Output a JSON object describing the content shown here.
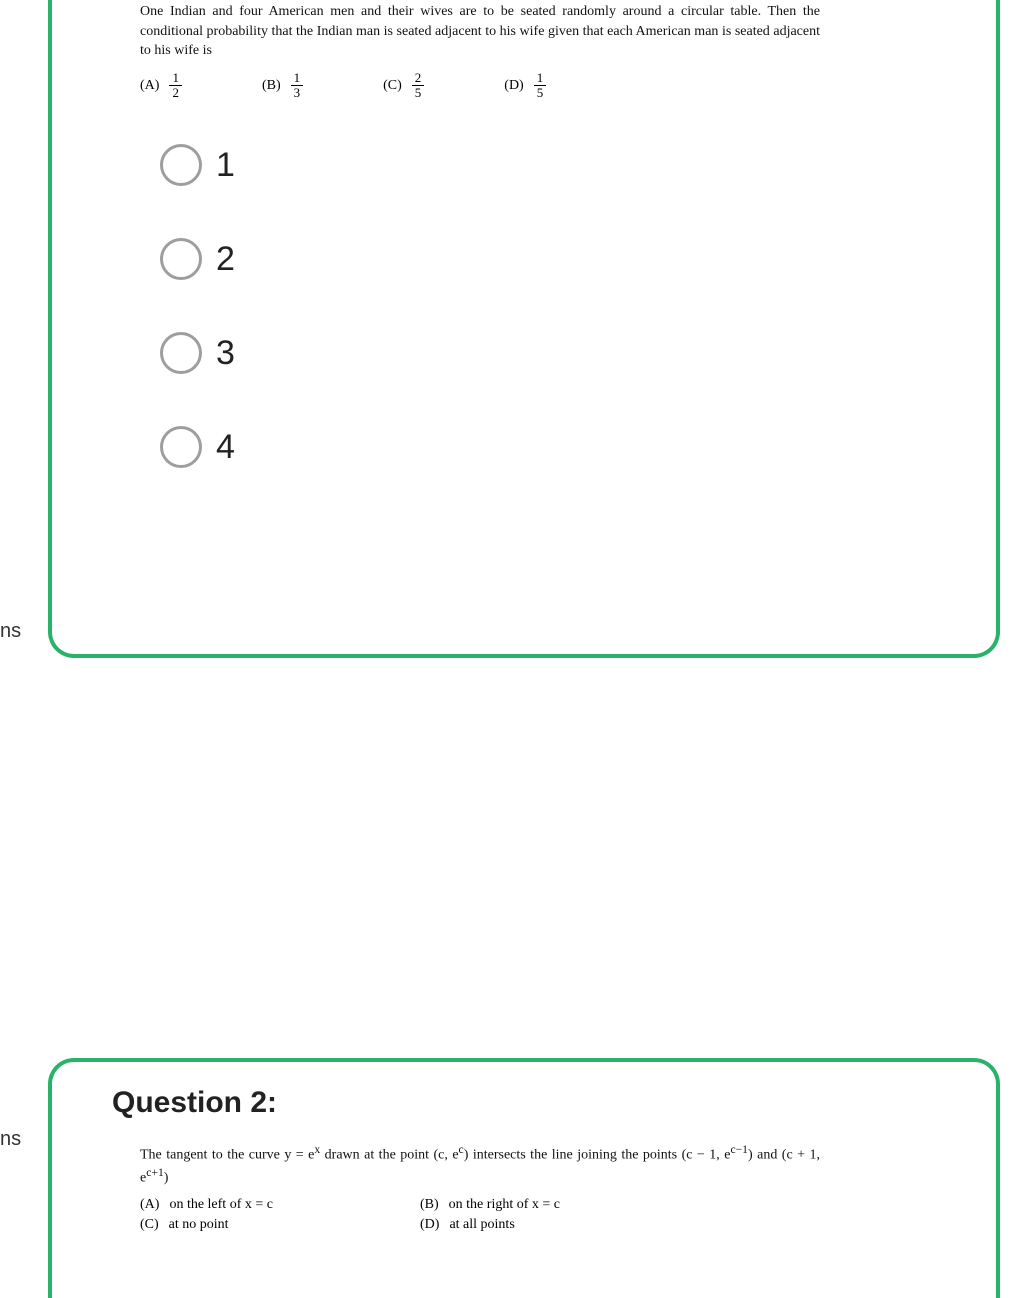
{
  "sideLabel": "ns",
  "question1": {
    "text": "One Indian and four American men and their wives are to be seated randomly around a circular table. Then the conditional probability that the Indian man is seated adjacent to his wife given that each American man is seated adjacent to his wife is",
    "options": [
      {
        "label": "(A)",
        "num": "1",
        "den": "2"
      },
      {
        "label": "(B)",
        "num": "1",
        "den": "3"
      },
      {
        "label": "(C)",
        "num": "2",
        "den": "5"
      },
      {
        "label": "(D)",
        "num": "1",
        "den": "5"
      }
    ],
    "radios": [
      "1",
      "2",
      "3",
      "4"
    ]
  },
  "question2": {
    "title": "Question 2:",
    "text_a": "The tangent to the curve y = e",
    "text_b": " drawn at the point (c, e",
    "text_c": ") intersects the line joining the points (c − 1, e",
    "text_d": ") and (c + 1, e",
    "text_e": ")",
    "sup1": "x",
    "sup2": "c",
    "sup3": "c−1",
    "sup4": "c+1",
    "options": [
      {
        "label": "(A)",
        "text": "on the left of x = c"
      },
      {
        "label": "(B)",
        "text": "on the right of x = c"
      },
      {
        "label": "(C)",
        "text": "at no point"
      },
      {
        "label": "(D)",
        "text": "at all points"
      }
    ]
  }
}
